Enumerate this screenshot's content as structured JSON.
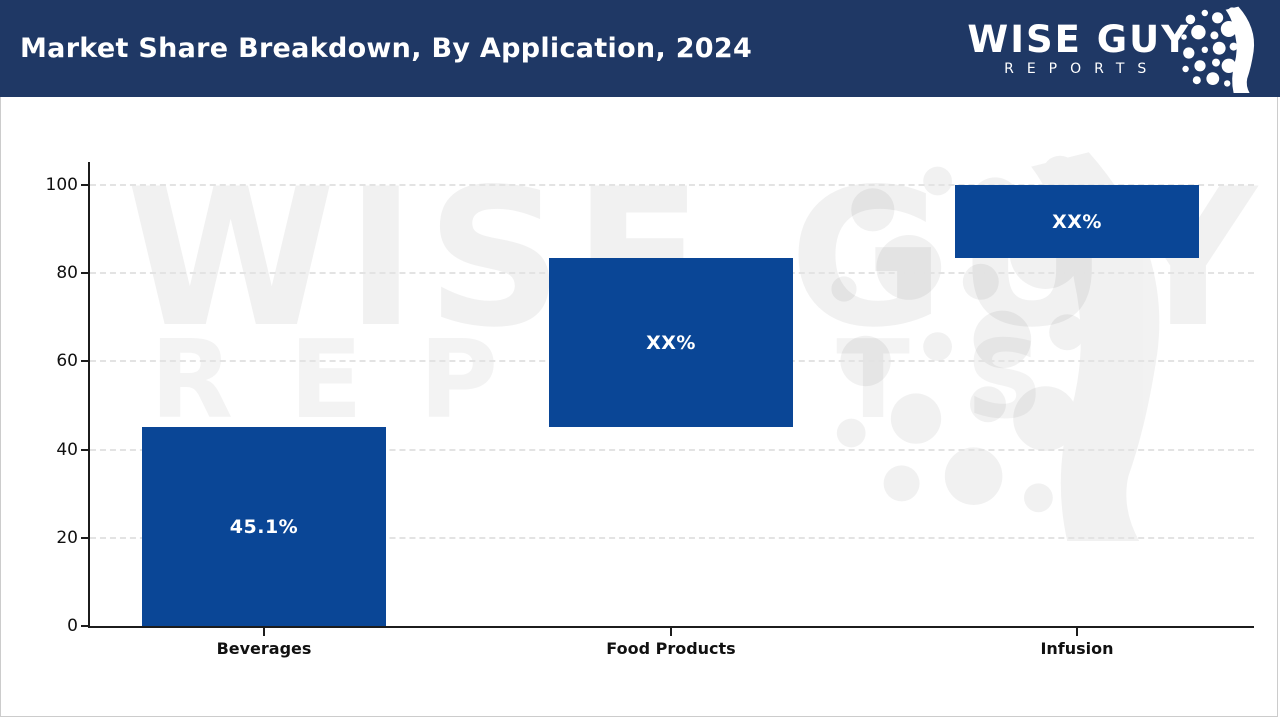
{
  "header": {
    "title": "Market Share Breakdown, By Application, 2024",
    "logo": {
      "brand": "WISE GUY",
      "sub": "REPORTS"
    }
  },
  "watermark": {
    "line1": "WISE GUY",
    "line2": "REPORTS"
  },
  "chart_data": {
    "type": "bar",
    "variant": "floating_segment_waterfall",
    "title": "Market Share Breakdown, By Application, 2024",
    "categories": [
      "Beverages",
      "Food Products",
      "Infusion"
    ],
    "segments": [
      {
        "category": "Beverages",
        "start": 0,
        "end": 45.1,
        "label": "45.1%"
      },
      {
        "category": "Food Products",
        "start": 45.1,
        "end": 83.4,
        "label": "XX%"
      },
      {
        "category": "Infusion",
        "start": 83.4,
        "end": 100,
        "label": "XX%"
      }
    ],
    "ylim": [
      0,
      100
    ],
    "y_ticks": [
      0,
      20,
      40,
      60,
      80,
      100
    ],
    "xlabel": "",
    "ylabel": "",
    "grid": "horizontal-dashed",
    "legend": "none",
    "bar_color": "#0a4696",
    "bar_label_color": "#ffffff"
  },
  "colors": {
    "header_bg": "#1f3865",
    "bar": "#0a4696",
    "axis": "#1c1c1c",
    "gridline": "#e3e3e3",
    "text": "#111111",
    "page_bg": "#ffffff",
    "border": "#cccccc",
    "watermark": "#f2f2f2"
  }
}
